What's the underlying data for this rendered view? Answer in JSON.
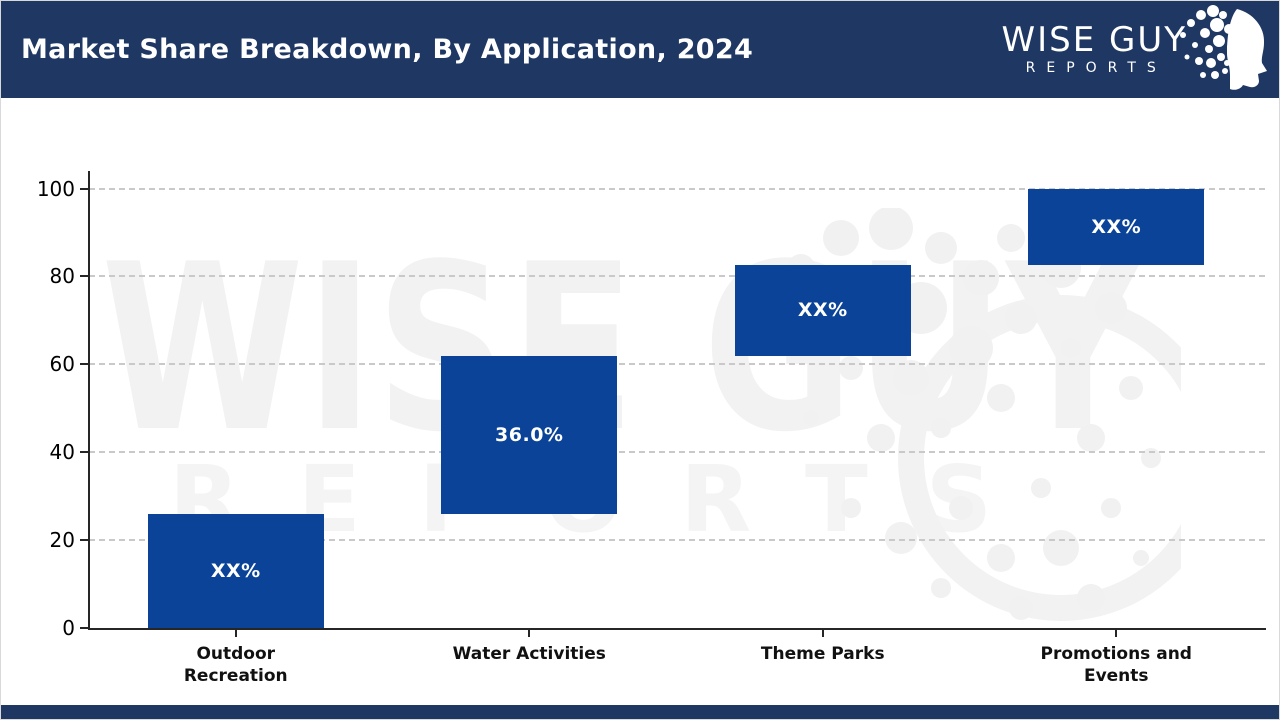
{
  "header": {
    "title": "Market Share Breakdown, By Application, 2024",
    "logo": {
      "line1": "WISE GUY",
      "line2": "REPORTS"
    }
  },
  "watermark": {
    "line1": "WISE GUY",
    "line2": "REPORTS"
  },
  "colors": {
    "header_bg": "#1f3763",
    "footer_bg": "#1f3763",
    "bar": "#0a4397",
    "grid": "#c9c9c9",
    "axis": "#262626",
    "watermark": "#f2f2f2",
    "bar_label_text": "#ffffff"
  },
  "chart_data": {
    "type": "bar",
    "subtype": "waterfall",
    "title": "Market Share Breakdown, By Application, 2024",
    "xlabel": "",
    "ylabel": "",
    "ylim": [
      0,
      100
    ],
    "yticks": [
      0,
      20,
      40,
      60,
      80,
      100
    ],
    "grid": "horizontal-dashed",
    "legend": "none",
    "categories": [
      "Outdoor Recreation",
      "Water Activities",
      "Theme Parks",
      "Promotions and Events"
    ],
    "segments": [
      {
        "category": "Outdoor Recreation",
        "start": 0,
        "end": 26,
        "value": 26,
        "label": "XX%"
      },
      {
        "category": "Water Activities",
        "start": 26,
        "end": 62,
        "value": 36,
        "label": "36.0%"
      },
      {
        "category": "Theme Parks",
        "start": 62,
        "end": 82.5,
        "value": 20.5,
        "label": "XX%"
      },
      {
        "category": "Promotions and Events",
        "start": 82.5,
        "end": 100,
        "value": 17.5,
        "label": "XX%"
      }
    ],
    "bar_color": "#0a4397"
  }
}
